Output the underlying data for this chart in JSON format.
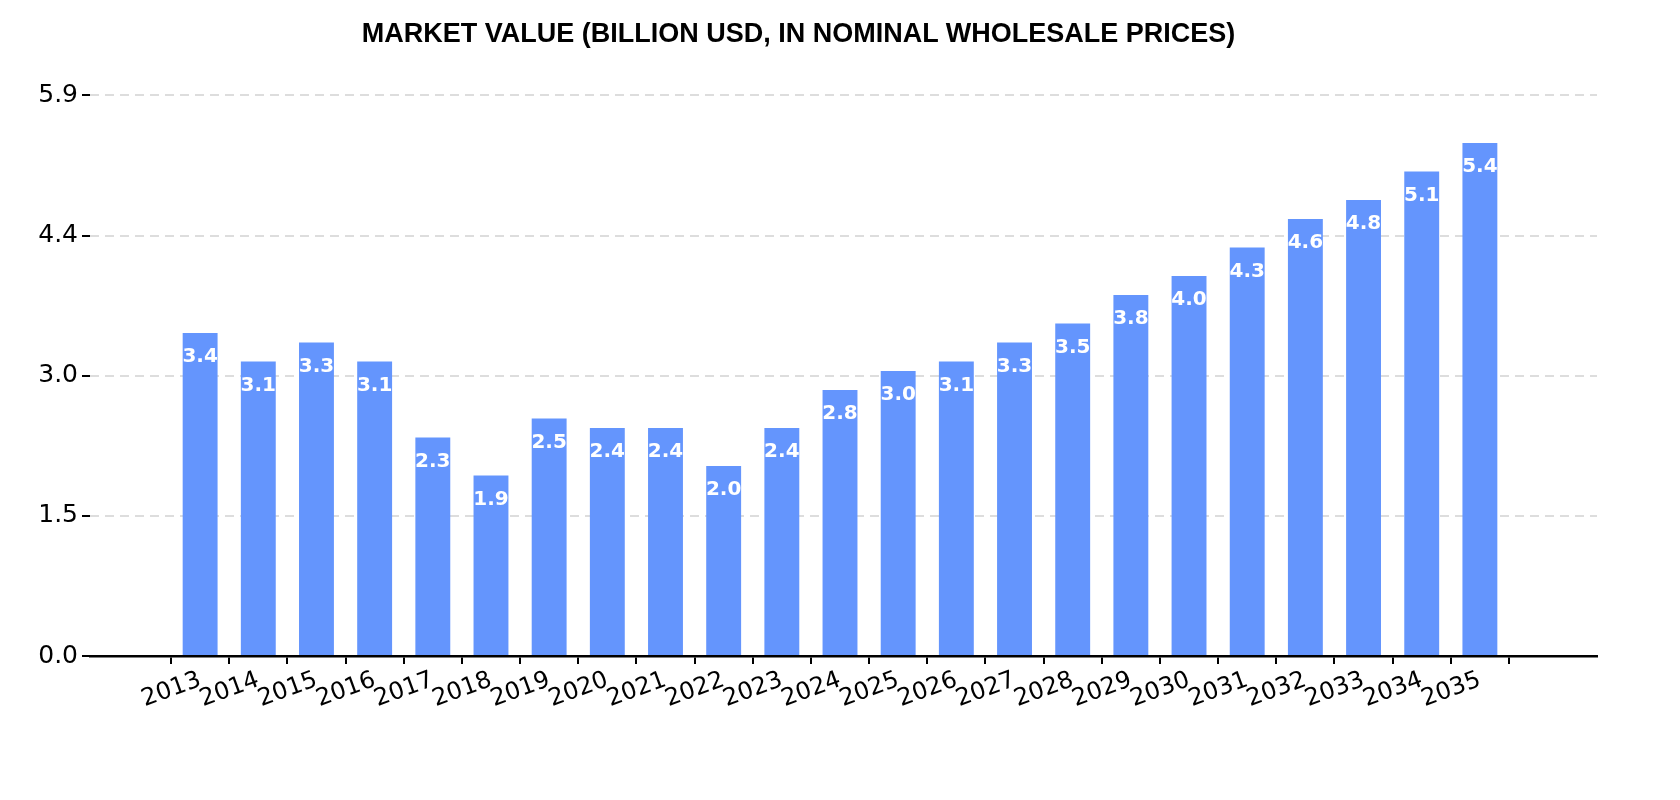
{
  "chart_data": {
    "type": "bar",
    "title": "MARKET VALUE (BILLION USD, IN NOMINAL WHOLESALE PRICES)",
    "categories": [
      "2013",
      "2014",
      "2015",
      "2016",
      "2017",
      "2018",
      "2019",
      "2020",
      "2021",
      "2022",
      "2023",
      "2024",
      "2025",
      "2026",
      "2027",
      "2028",
      "2029",
      "2030",
      "2031",
      "2032",
      "2033",
      "2034",
      "2035"
    ],
    "values": [
      3.4,
      3.1,
      3.3,
      3.1,
      2.3,
      1.9,
      2.5,
      2.4,
      2.4,
      2.0,
      2.4,
      2.8,
      3.0,
      3.1,
      3.3,
      3.5,
      3.8,
      4.0,
      4.3,
      4.6,
      4.8,
      5.1,
      5.4
    ],
    "value_labels": [
      "3.4",
      "3.1",
      "3.3",
      "3.1",
      "2.3",
      "1.9",
      "2.5",
      "2.4",
      "2.4",
      "2.0",
      "2.4",
      "2.8",
      "3.0",
      "3.1",
      "3.3",
      "3.5",
      "3.8",
      "4.0",
      "4.3",
      "4.6",
      "4.8",
      "5.1",
      "5.4"
    ],
    "color": "#6495fd",
    "ylim": [
      0,
      5.9
    ],
    "yticks": [
      {
        "value": 0,
        "label": "0.0"
      },
      {
        "value": 1.475,
        "label": "1.5"
      },
      {
        "value": 2.95,
        "label": "3.0"
      },
      {
        "value": 4.425,
        "label": "4.4"
      },
      5.9
    ],
    "grid": "y",
    "legend": false
  }
}
